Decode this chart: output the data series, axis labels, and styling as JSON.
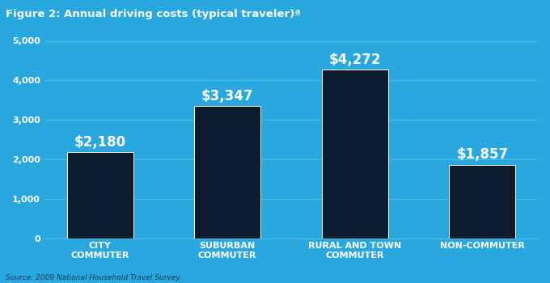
{
  "title": "Figure 2: Annual driving costs (typical traveler)ª",
  "categories": [
    "CITY\nCOMMUTER",
    "SUBURBAN\nCOMMUTER",
    "RURAL AND TOWN\nCOMMUTER",
    "NON-COMMUTER"
  ],
  "values": [
    2180,
    3347,
    4272,
    1857
  ],
  "value_labels": [
    "$2,180",
    "$3,347",
    "$4,272",
    "$1,857"
  ],
  "bar_color": "#0d1b2e",
  "background_color": "#29a8e0",
  "title_bg_color": "#0d1b2e",
  "title_text_color": "#ffffff",
  "axis_text_color": "#ffffff",
  "grid_color": "#4dbde8",
  "silhouette_color": "#1a6ea8",
  "source_text": "Source: 2009 National Household Travel Survey.",
  "ylim": [
    0,
    5000
  ],
  "yticks": [
    0,
    1000,
    2000,
    3000,
    4000,
    5000
  ],
  "bar_width": 0.52,
  "value_label_fontsize": 12,
  "category_fontsize": 8,
  "title_fontsize": 9.5
}
